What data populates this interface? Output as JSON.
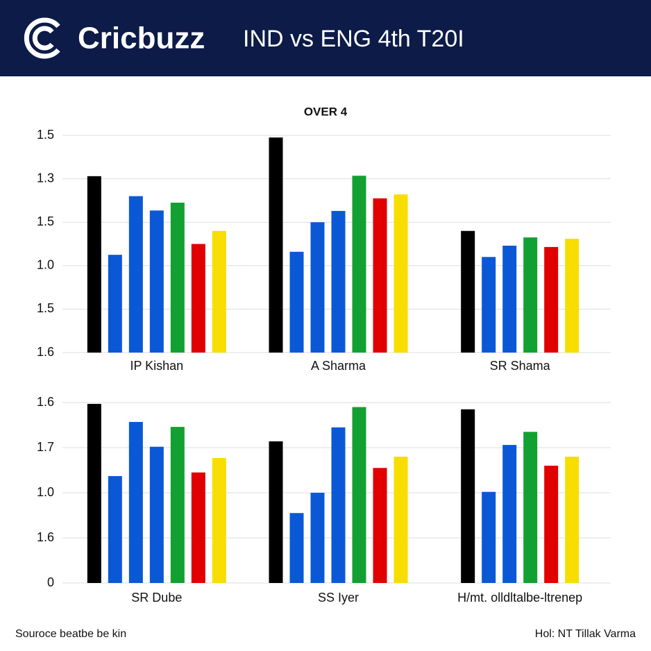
{
  "header": {
    "logo": "Cricbuzz",
    "title": "IND vs ENG 4th T20I"
  },
  "chart_data": [
    {
      "type": "bar",
      "title": "OVER 4",
      "categories": [
        "IP Kishan",
        "A Sharma",
        "SR Shama"
      ],
      "series": [
        {
          "color": "#000000",
          "values": [
            4.06,
            4.95,
            2.8
          ]
        },
        {
          "color": "#0a58d6",
          "values": [
            2.25,
            2.32,
            2.2
          ]
        },
        {
          "color": "#0a58d6",
          "values": [
            3.6,
            3.0,
            2.46
          ]
        },
        {
          "color": "#0a58d6",
          "values": [
            3.27,
            3.26,
            null
          ]
        },
        {
          "color": "#13a032",
          "values": [
            3.45,
            4.07,
            2.65
          ]
        },
        {
          "color": "#e00000",
          "values": [
            2.5,
            3.55,
            2.43
          ]
        },
        {
          "color": "#f7de00",
          "values": [
            2.8,
            3.64,
            2.62
          ]
        }
      ],
      "ylim": [
        0,
        5
      ],
      "yticks": [
        {
          "value": 0,
          "label": "1.6"
        },
        {
          "value": 1,
          "label": "1.5"
        },
        {
          "value": 2,
          "label": "1.0"
        },
        {
          "value": 3,
          "label": "1.5"
        },
        {
          "value": 4,
          "label": "1.3"
        },
        {
          "value": 5,
          "label": "1.5"
        }
      ],
      "grid": true
    },
    {
      "type": "bar",
      "categories": [
        "SR Dube",
        "SS Iyer",
        "H/mt. olldltalbe-ltrenep"
      ],
      "series": [
        {
          "color": "#000000",
          "values": [
            3.97,
            3.14,
            3.85
          ]
        },
        {
          "color": "#0a58d6",
          "values": [
            2.37,
            1.55,
            2.02
          ]
        },
        {
          "color": "#0a58d6",
          "values": [
            3.57,
            2.0,
            3.06
          ]
        },
        {
          "color": "#0a58d6",
          "values": [
            3.02,
            3.45,
            null
          ]
        },
        {
          "color": "#13a032",
          "values": [
            3.46,
            3.9,
            3.35
          ]
        },
        {
          "color": "#e00000",
          "values": [
            2.45,
            2.55,
            2.6
          ]
        },
        {
          "color": "#f7de00",
          "values": [
            2.77,
            2.8,
            2.8
          ]
        }
      ],
      "ylim": [
        0,
        4
      ],
      "yticks": [
        0,
        {
          "value": 1,
          "label": "1.6"
        },
        {
          "value": 2,
          "label": "1.0"
        },
        {
          "value": 3,
          "label": "1.7"
        },
        {
          "value": 4,
          "label": "1.6"
        }
      ],
      "grid": true
    }
  ],
  "footer": {
    "source": "Souroce beatbe be kin",
    "note": "Hol: NT Tillak Varma"
  }
}
